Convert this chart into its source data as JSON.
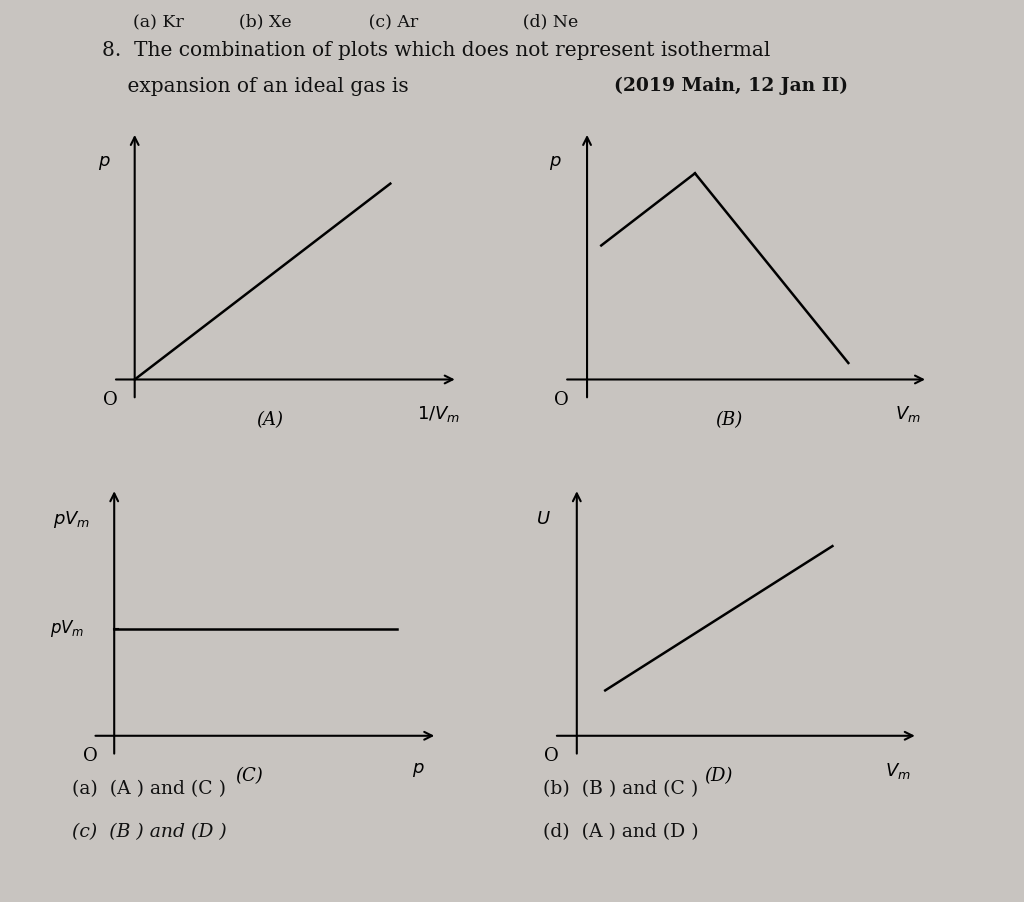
{
  "background_color": "#c8c4c0",
  "title_line1": "8.  The combination of plots which does not represent isothermal",
  "title_line2": "    expansion of an ideal gas is",
  "source_text": "(2019 Main, 12 Jan II)",
  "header_text": "(a) Kr          (b) Xe              (c) Ar                   (d) Ne",
  "options": [
    "(a)  (A ) and (C )",
    "(b)  (B ) and (C )",
    "(c)  (B ) and (D )",
    "(d)  (A ) and (D )"
  ],
  "plot_labels": [
    "(A)",
    "(B)",
    "(C)",
    "(D)"
  ],
  "line_color": "#111111",
  "text_color": "#111111",
  "bg": "#c8c4c0"
}
